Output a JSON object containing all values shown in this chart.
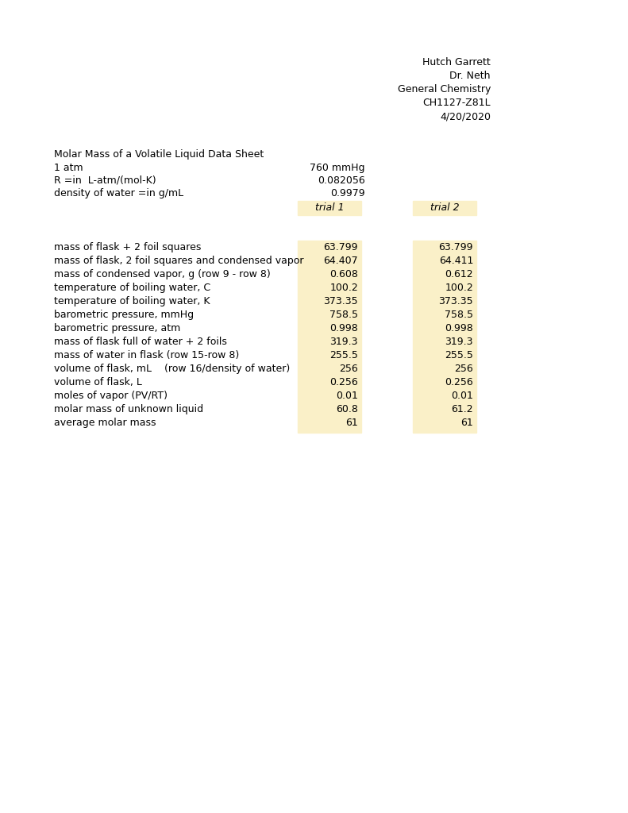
{
  "header_lines": [
    "Hutch Garrett",
    "Dr. Neth",
    "General Chemistry",
    "CH1127-Z81L",
    "4/20/2020"
  ],
  "title": "Molar Mass of a Volatile Liquid Data Sheet",
  "info_rows": [
    [
      "1 atm",
      "760 mmHg"
    ],
    [
      "R =in  L-atm/(mol-K)",
      "0.082056"
    ],
    [
      "density of water =in g/mL",
      "0.9979"
    ]
  ],
  "col_headers": [
    "trial 1",
    "trial 2"
  ],
  "row_labels": [
    "mass of flask + 2 foil squares",
    "mass of flask, 2 foil squares and condensed vapor",
    "mass of condensed vapor, g (row 9 - row 8)",
    "temperature of boiling water, C",
    "temperature of boiling water, K",
    "barometric pressure, mmHg",
    "barometric pressure, atm",
    "mass of flask full of water + 2 foils",
    "mass of water in flask (row 15-row 8)",
    "volume of flask, mL    (row 16/density of water)",
    "volume of flask, L",
    "moles of vapor (PV/RT)",
    "molar mass of unknown liquid",
    "average molar mass"
  ],
  "trial1_values": [
    "63.799",
    "64.407",
    "0.608",
    "100.2",
    "373.35",
    "758.5",
    "0.998",
    "319.3",
    "255.5",
    "256",
    "0.256",
    "0.01",
    "60.8",
    "61"
  ],
  "trial2_values": [
    "63.799",
    "64.411",
    "0.612",
    "100.2",
    "373.35",
    "758.5",
    "0.998",
    "319.3",
    "255.5",
    "256",
    "0.256",
    "0.01",
    "61.2",
    "61"
  ],
  "highlight_color": "#FAF0C8",
  "background_color": "#FFFFFF",
  "text_color": "#000000",
  "font_size": 9.0,
  "header_font_size": 9.0
}
